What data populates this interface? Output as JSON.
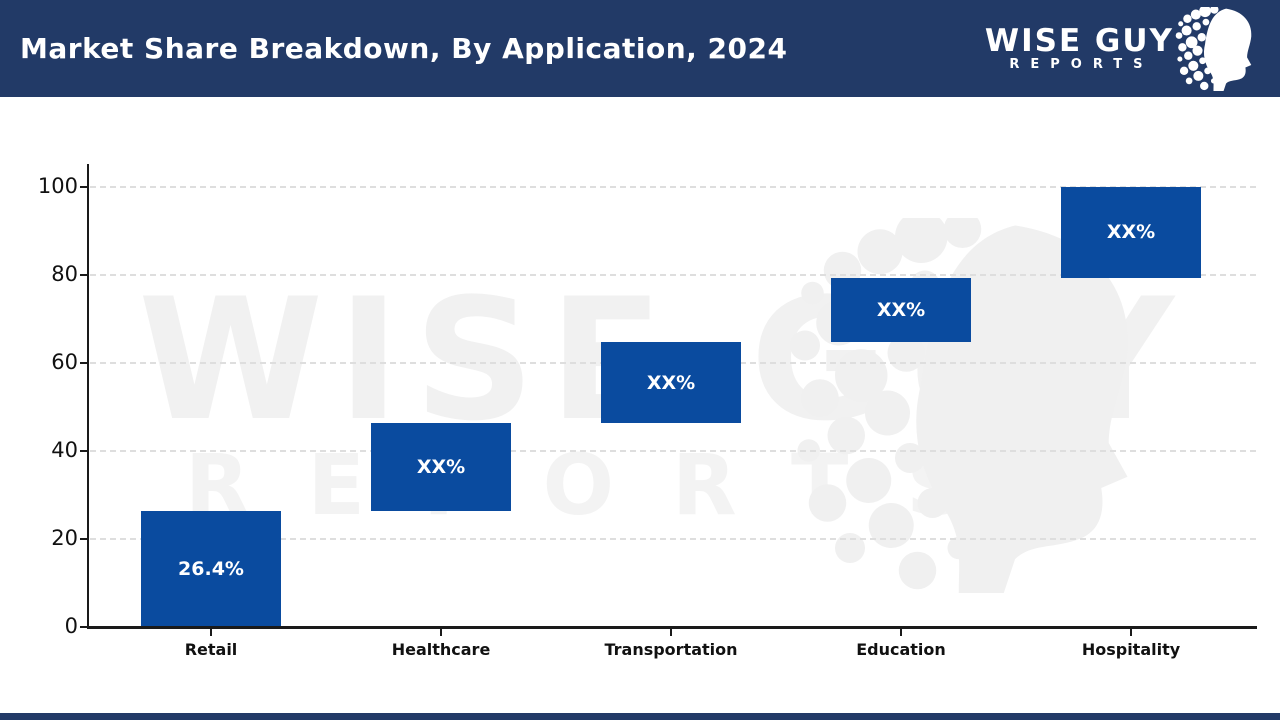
{
  "header": {
    "title": "Market Share Breakdown, By Application, 2024",
    "bg_color": "#223a67",
    "logo": {
      "line1": "WISE GUY",
      "line2": "REPORTS"
    }
  },
  "watermark": {
    "line1": "WISE GUY",
    "line2": "REPORTS"
  },
  "chart_data": {
    "type": "bar",
    "subtype": "waterfall",
    "title": "Market Share Breakdown, By Application, 2024",
    "categories": [
      "Retail",
      "Healthcare",
      "Transportation",
      "Education",
      "Hospitality"
    ],
    "segments": [
      {
        "category": "Retail",
        "start": 0,
        "end": 26.4,
        "label": "26.4%"
      },
      {
        "category": "Healthcare",
        "start": 26.4,
        "end": 46.4,
        "label": "XX%"
      },
      {
        "category": "Transportation",
        "start": 46.4,
        "end": 64.6,
        "label": "XX%"
      },
      {
        "category": "Education",
        "start": 64.6,
        "end": 79.3,
        "label": "XX%"
      },
      {
        "category": "Hospitality",
        "start": 79.3,
        "end": 100,
        "label": "XX%"
      }
    ],
    "y_ticks": [
      0,
      20,
      40,
      60,
      80,
      100
    ],
    "ylim": [
      0,
      105
    ],
    "xlabel": "",
    "ylabel": "",
    "legend": "none",
    "grid": "horizontal-dashed",
    "bar_color": "#0a4b9f",
    "grid_color": "#dedede",
    "axis_color": "#1a1a1a",
    "label_color": "#ffffff"
  }
}
